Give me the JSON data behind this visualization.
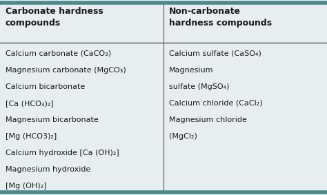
{
  "col1_header": "Carbonate hardness\ncompounds",
  "col2_header": "Non-carbonate\nhardness compounds",
  "col1_lines": [
    "Calcium carbonate (CaCO₃)",
    "Magnesium carbonate (MgCO₃)",
    "Calcium bicarbonate",
    "[Ca (HCO₃)₂]",
    "Magnesium bicarbonate",
    "[Mg (HCO3)₂]",
    "Calcium hydroxide [Ca (OH)₂]",
    "Magnesium hydroxide",
    "[Mg (OH)₂]"
  ],
  "col2_lines": [
    "Calcium sulfate (CaSO₄)",
    "Magnesium",
    "sulfate (MgSO₄)",
    "Calcium chloride (CaCl₂)",
    "Magnesium chloride",
    "(MgCl₂)",
    "",
    "",
    ""
  ],
  "teal_color": "#4a8a8c",
  "divider_color": "#555555",
  "bg_color": "#e8eef0",
  "text_color": "#1a1a1a",
  "font_size": 8.0,
  "header_font_size": 9.0
}
